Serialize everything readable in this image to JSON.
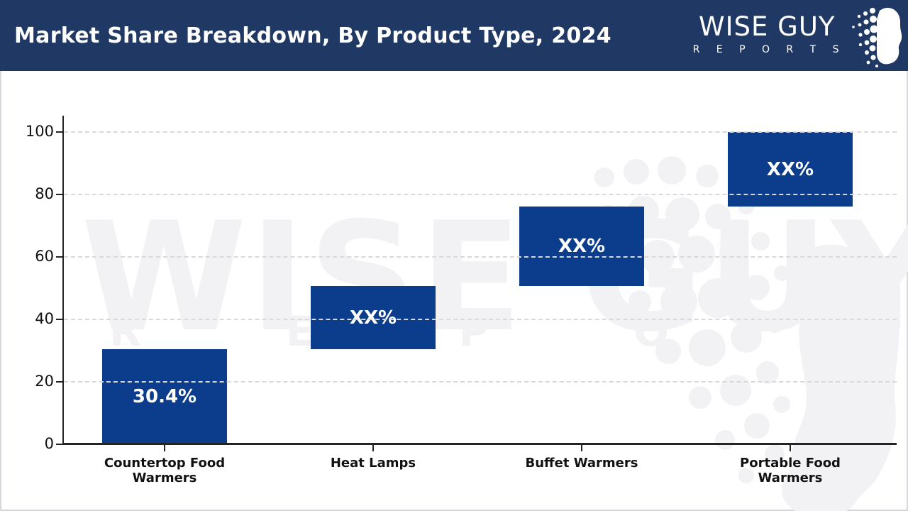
{
  "header": {
    "title": "Market Share Breakdown, By Product Type, 2024",
    "bg_color": "#1F3864",
    "logo": {
      "line1": "WISE GUY",
      "line2": "R E P O R T S",
      "head_icon": "dotted-head-profile"
    }
  },
  "watermark": {
    "line1": "WISE GUY",
    "line2": "R E P O R T S"
  },
  "chart_data": {
    "type": "bar",
    "subtype": "floating-waterfall",
    "title": "Market Share Breakdown, By Product Type, 2024",
    "categories": [
      "Countertop Food Warmers",
      "Heat Lamps",
      "Buffet Warmers",
      "Portable Food Warmers"
    ],
    "segments": [
      {
        "category": "Countertop Food Warmers",
        "start": 0,
        "end": 30.4,
        "label": "30.4%"
      },
      {
        "category": "Heat Lamps",
        "start": 30.4,
        "end": 50.6,
        "label": "XX%"
      },
      {
        "category": "Buffet Warmers",
        "start": 50.6,
        "end": 76.1,
        "label": "XX%"
      },
      {
        "category": "Portable Food Warmers",
        "start": 76.1,
        "end": 100,
        "label": "XX%"
      }
    ],
    "ylim": [
      0,
      100
    ],
    "yticks": [
      0,
      20,
      40,
      60,
      80,
      100
    ],
    "grid": "horizontal-dashed",
    "legend": "none",
    "bar_color": "#0C3D8D",
    "label_color": "#ffffff",
    "xlabel": "",
    "ylabel": ""
  }
}
